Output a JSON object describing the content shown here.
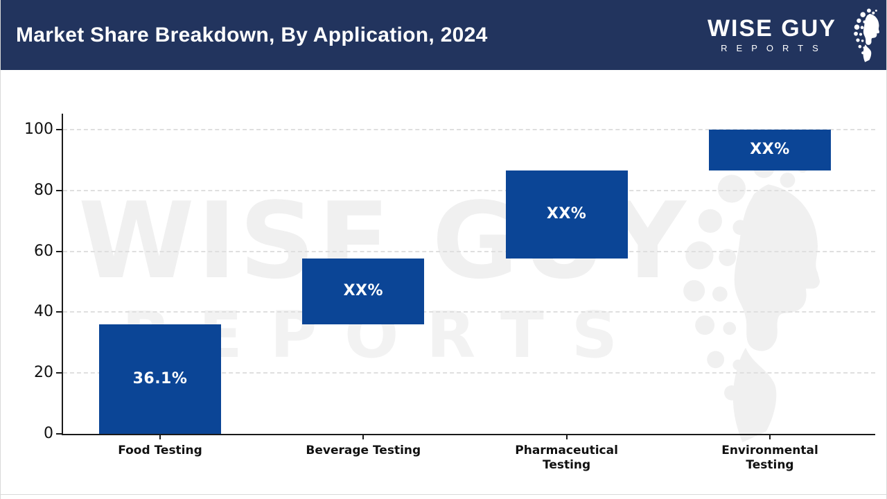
{
  "header": {
    "title": "Market Share Breakdown, By Application, 2024",
    "logo": {
      "line1": "WISE GUY",
      "line2": "REPORTS"
    }
  },
  "watermark": {
    "line1": "WISE GUY",
    "line2": "REPORTS"
  },
  "chart_data": {
    "type": "bar",
    "subtype": "waterfall-stacked",
    "title": "Market Share Breakdown, By Application, 2024",
    "categories": [
      "Food Testing",
      "Beverage Testing",
      "Pharmaceutical\nTesting",
      "Environmental\nTesting"
    ],
    "segments": [
      {
        "category": "Food Testing",
        "start": 0,
        "end": 36.1,
        "label": "36.1%"
      },
      {
        "category": "Beverage Testing",
        "start": 36.1,
        "end": 57.7,
        "label": "XX%"
      },
      {
        "category": "Pharmaceutical Testing",
        "start": 57.7,
        "end": 86.6,
        "label": "XX%"
      },
      {
        "category": "Environmental Testing",
        "start": 86.6,
        "end": 100,
        "label": "XX%"
      }
    ],
    "ylim": [
      0,
      100
    ],
    "yticks": [
      0,
      20,
      40,
      60,
      80,
      100
    ],
    "xlabel": "",
    "ylabel": "",
    "legend": "none",
    "grid": {
      "axis": "y",
      "style": "dashed",
      "color": "#dfdfdf"
    },
    "bar_color": "#0b4596",
    "bar_label_color": "#ffffff",
    "header_bg_color": "#22345e",
    "watermark_color": "#f0f0f0"
  }
}
